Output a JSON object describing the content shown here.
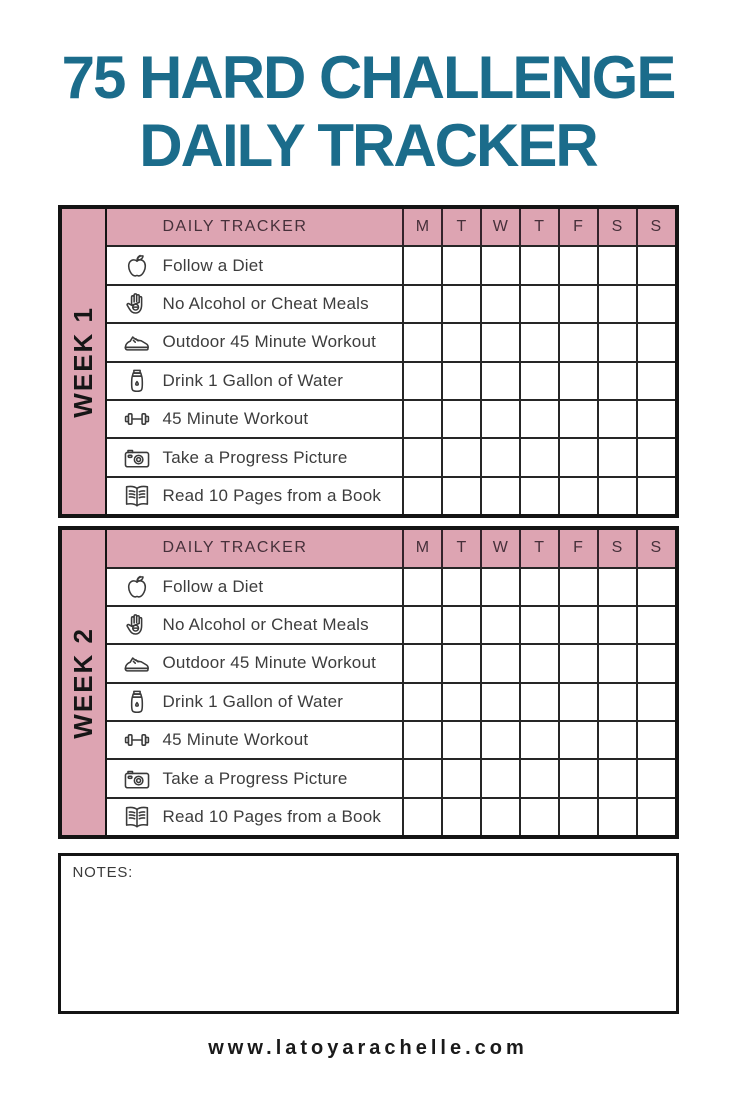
{
  "page": {
    "title_line1": "75 HARD CHALLENGE",
    "title_line2": "DAILY TRACKER",
    "footer": "www.latoyarachelle.com",
    "colors": {
      "title_teal": "#1b6c8b",
      "pink": "#dda4b2",
      "border": "#141414"
    }
  },
  "tracker": {
    "header_label": "DAILY TRACKER",
    "days": [
      "M",
      "T",
      "W",
      "T",
      "F",
      "S",
      "S"
    ],
    "tasks": [
      {
        "icon": "apple-icon",
        "label": "Follow a Diet"
      },
      {
        "icon": "hand-icon",
        "label": "No Alcohol or Cheat Meals"
      },
      {
        "icon": "sneaker-icon",
        "label": "Outdoor 45 Minute Workout"
      },
      {
        "icon": "bottle-icon",
        "label": "Drink 1 Gallon of Water"
      },
      {
        "icon": "dumbbell-icon",
        "label": "45 Minute Workout"
      },
      {
        "icon": "camera-icon",
        "label": "Take a Progress Picture"
      },
      {
        "icon": "book-icon",
        "label": "Read 10 Pages from a Book"
      }
    ]
  },
  "weeks": [
    {
      "label": "WEEK 1"
    },
    {
      "label": "WEEK 2"
    }
  ],
  "notes": {
    "label": "NOTES:"
  }
}
